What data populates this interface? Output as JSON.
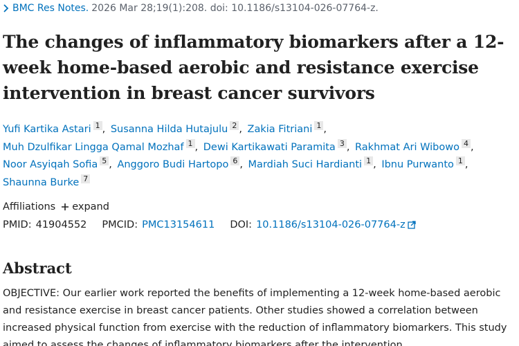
{
  "citation": {
    "journal": "BMC Res Notes.",
    "details": "2026 Mar 28;19(1):208. doi: 10.1186/s13104-026-07764-z."
  },
  "title": "The changes of inflammatory biomarkers after a 12-week home-based aerobic and resistance exercise intervention in breast cancer survivors",
  "authors": [
    {
      "name": "Yufi Kartika Astari",
      "aff": 1
    },
    {
      "name": "Susanna Hilda Hutajulu",
      "aff": 2
    },
    {
      "name": "Zakia Fitriani",
      "aff": 1
    },
    {
      "name": "Muh Dzulfikar Lingga Qamal Mozhaf",
      "aff": 1
    },
    {
      "name": "Dewi Kartikawati Paramita",
      "aff": 3
    },
    {
      "name": "Rakhmat Ari Wibowo",
      "aff": 4
    },
    {
      "name": "Noor Asyiqah Sofia",
      "aff": 5
    },
    {
      "name": "Anggoro Budi Hartopo",
      "aff": 6
    },
    {
      "name": "Mardiah Suci Hardianti",
      "aff": 1
    },
    {
      "name": "Ibnu Purwanto",
      "aff": 1
    },
    {
      "name": "Shaunna Burke",
      "aff": 7
    }
  ],
  "affiliations": {
    "label": "Affiliations",
    "toggle": "expand"
  },
  "ids": {
    "pmid_label": "PMID:",
    "pmid": "41904552",
    "pmcid_label": "PMCID:",
    "pmcid": "PMC13154611",
    "doi_label": "DOI:",
    "doi": "10.1186/s13104-026-07764-z"
  },
  "abstract": {
    "heading": "Abstract",
    "label": "OBJECTIVE:",
    "text": "Our earlier work reported the benefits of implementing a 12-week home-based aerobic and resistance exercise in breast cancer patients. Other studies showed a correlation between increased physical function from exercise with the reduction of inflammatory biomarkers. This study aimed to assess the changes of inflammatory biomarkers after the intervention."
  }
}
